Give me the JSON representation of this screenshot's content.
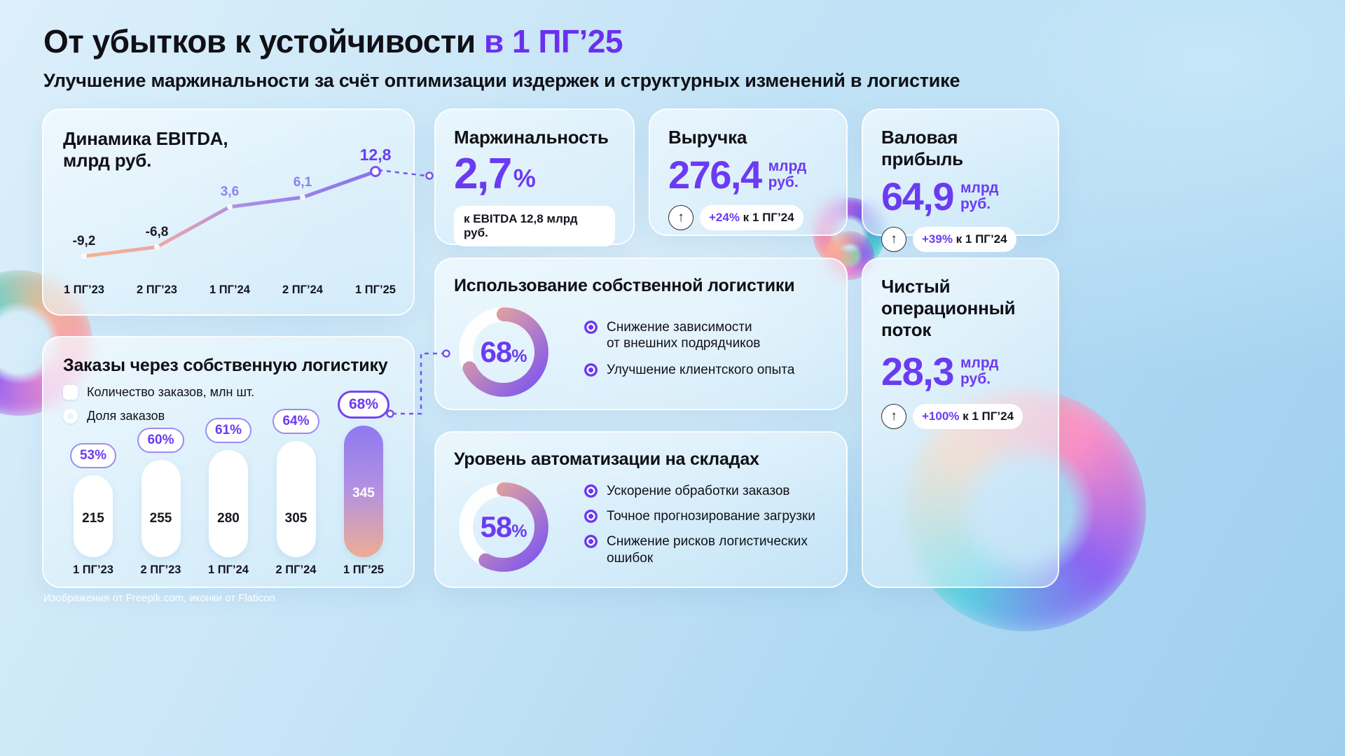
{
  "header": {
    "title": "От убытков к устойчивости",
    "title_accent": " в 1 ПГ’25",
    "subtitle": "Улучшение маржинальности за счёт оптимизации издержек и структурных изменений в логистике"
  },
  "ebitda_card": {
    "title": "Динамика EBITDA,\nмлрд руб."
  },
  "margin_card": {
    "title": "Маржинальность",
    "value": "2,7",
    "unit": "%",
    "note": "к EBITDA 12,8 млрд руб."
  },
  "revenue_card": {
    "title": "Выручка",
    "value": "276,4",
    "unit_top": "млрд",
    "unit_bottom": "руб.",
    "delta": "+24%",
    "delta_ref": " к 1 ПГ’24",
    "arrow": "↑"
  },
  "gross_card": {
    "title": "Валовая прибыль",
    "value": "64,9",
    "unit_top": "млрд",
    "unit_bottom": "руб.",
    "delta": "+39%",
    "delta_ref": " к 1 ПГ’24",
    "arrow": "↑"
  },
  "cashflow_card": {
    "title": "Чистый\nоперационный\nпоток",
    "value": "28,3",
    "unit_top": "млрд",
    "unit_bottom": "руб.",
    "delta": "+100%",
    "delta_ref": " к 1 ПГ’24",
    "arrow": "↑"
  },
  "logistics_card": {
    "title": "Использование собственной логистики",
    "bullets": [
      "Снижение зависимости\nот внешних подрядчиков",
      "Улучшение клиентского опыта"
    ]
  },
  "automation_card": {
    "title": "Уровень автоматизации на складах",
    "bullets": [
      "Ускорение обработки заказов",
      "Точное прогнозирование загрузки",
      "Снижение рисков логистических\nошибок"
    ]
  },
  "orders_card": {
    "title": "Заказы через собственную логистику",
    "legend_count": "Количество заказов, млн шт.",
    "legend_share": "Доля заказов"
  },
  "footer_credits": "Изображения от Freepik.com, иконки от Flaticon",
  "colors": {
    "accent": "#6B3BF2",
    "line_start": "#F5B18E",
    "line_end": "#8873EE",
    "dark": "#14141F"
  },
  "chart_data": [
    {
      "type": "line",
      "title": "Динамика EBITDA, млрд руб.",
      "x": [
        "1 ПГ’23",
        "2 ПГ’23",
        "1 ПГ’24",
        "2 ПГ’24",
        "1 ПГ’25"
      ],
      "values": [
        -9.2,
        -6.8,
        3.6,
        6.1,
        12.8
      ],
      "point_labels": [
        "-9,2",
        "-6,8",
        "3,6",
        "6,1",
        "12,8"
      ],
      "highlight_index": 4,
      "ylim": [
        -12,
        16
      ],
      "grid": false,
      "ylabel": "млрд руб."
    },
    {
      "type": "bar",
      "title": "Заказы через собственную логистику",
      "categories": [
        "1 ПГ’23",
        "2 ПГ’23",
        "1 ПГ’24",
        "2 ПГ’24",
        "1 ПГ’25"
      ],
      "series": [
        {
          "name": "Количество заказов, млн шт.",
          "values": [
            215,
            255,
            280,
            305,
            345
          ]
        },
        {
          "name": "Доля заказов, %",
          "values": [
            53,
            60,
            61,
            64,
            68
          ]
        }
      ],
      "highlight_index": 4
    },
    {
      "type": "pie",
      "title": "Использование собственной логистики",
      "values": [
        68,
        32
      ],
      "center_label": "68%"
    },
    {
      "type": "pie",
      "title": "Уровень автоматизации на складах",
      "values": [
        58,
        42
      ],
      "center_label": "58%"
    }
  ]
}
